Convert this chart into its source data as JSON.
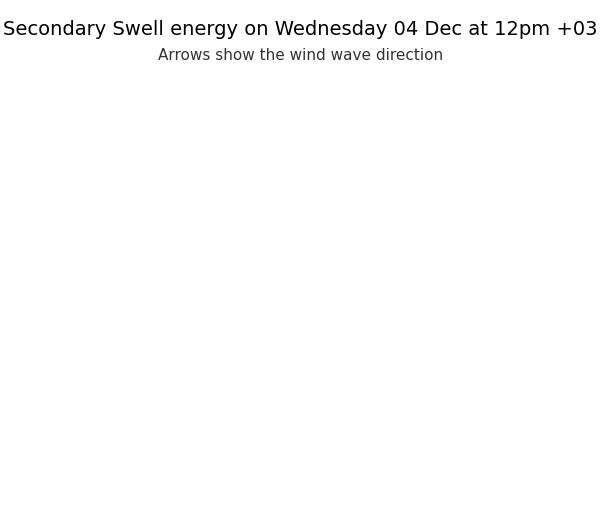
{
  "title": "Secondary Swell energy on Wednesday 04 Dec at 12pm +03",
  "subtitle": "Arrows show the wind wave direction",
  "title_fontsize": 14,
  "subtitle_fontsize": 11,
  "fig_width": 6.01,
  "fig_height": 5.08,
  "dpi": 100,
  "bg_color": "#ffffff",
  "border_color": "#000000",
  "map_region": "armenia_middle_east",
  "title_color": "#000000",
  "subtitle_color": "#333333"
}
